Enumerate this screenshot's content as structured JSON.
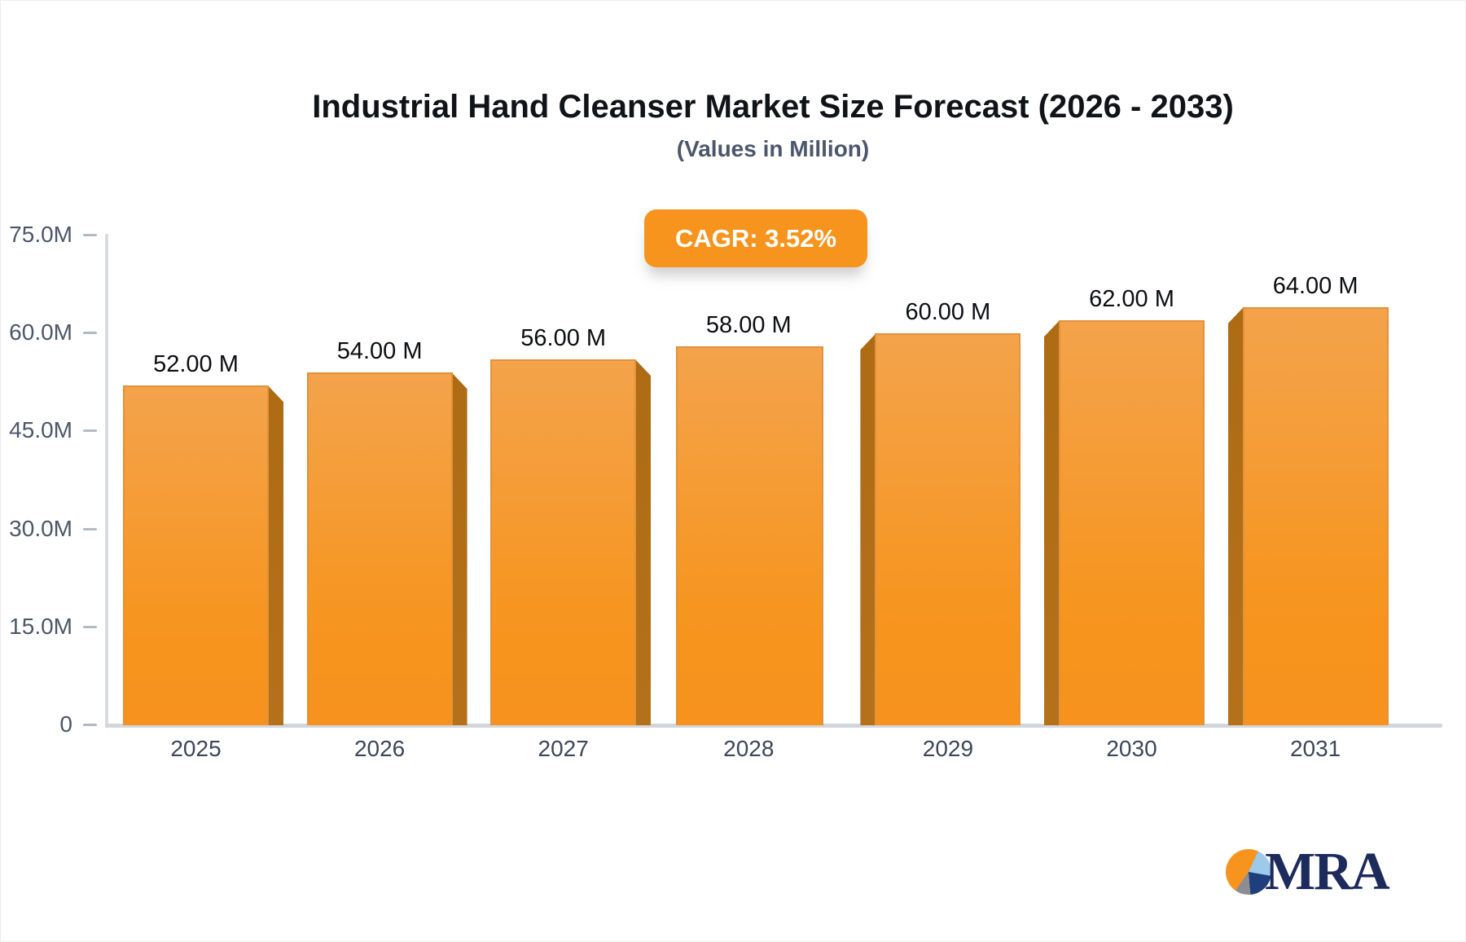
{
  "title": "Industrial Hand Cleanser Market Size Forecast (2026 - 2033)",
  "subtitle": "(Values in Million)",
  "badge": {
    "label": "CAGR: 3.52%",
    "bg_color": "#F7941E",
    "text_color": "#FFFFFF"
  },
  "chart_data": {
    "type": "bar",
    "title": "Industrial Hand Cleanser Market Size Forecast (2026 - 2033)",
    "subtitle": "(Values in Million)",
    "categories": [
      "2025",
      "2026",
      "2027",
      "2028",
      "2029",
      "2030",
      "2031"
    ],
    "values": [
      52,
      54,
      56,
      58,
      60,
      62,
      64
    ],
    "value_labels": [
      "52.00 M",
      "54.00 M",
      "56.00 M",
      "58.00 M",
      "60.00 M",
      "62.00 M",
      "64.00 M"
    ],
    "unit": "Million",
    "ylim": [
      0,
      75
    ],
    "yticks": [
      {
        "value": 75,
        "label": "75.0M"
      },
      {
        "value": 60,
        "label": "60.0M"
      },
      {
        "value": 45,
        "label": "45.0M"
      },
      {
        "value": 30,
        "label": "30.0M"
      },
      {
        "value": 15,
        "label": "15.0M"
      },
      {
        "value": 0,
        "label": "0"
      }
    ],
    "grid": false,
    "legend": "none",
    "bar_color_top": "#F4A34C",
    "bar_color_bottom": "#F6921D",
    "bar_side_color": "#B2701A",
    "bar_border_color": "#E2923A",
    "axis_color": "#D5D8DD",
    "cagr": "3.52%"
  },
  "logo": {
    "text": "MRA",
    "pie_color_orange": "#F7941E",
    "pie_color_lightblue": "#9DC9EA",
    "pie_color_navy": "#1E3F7D",
    "pie_color_gray": "#8D8D92",
    "text_color": "#1D2A5C"
  }
}
